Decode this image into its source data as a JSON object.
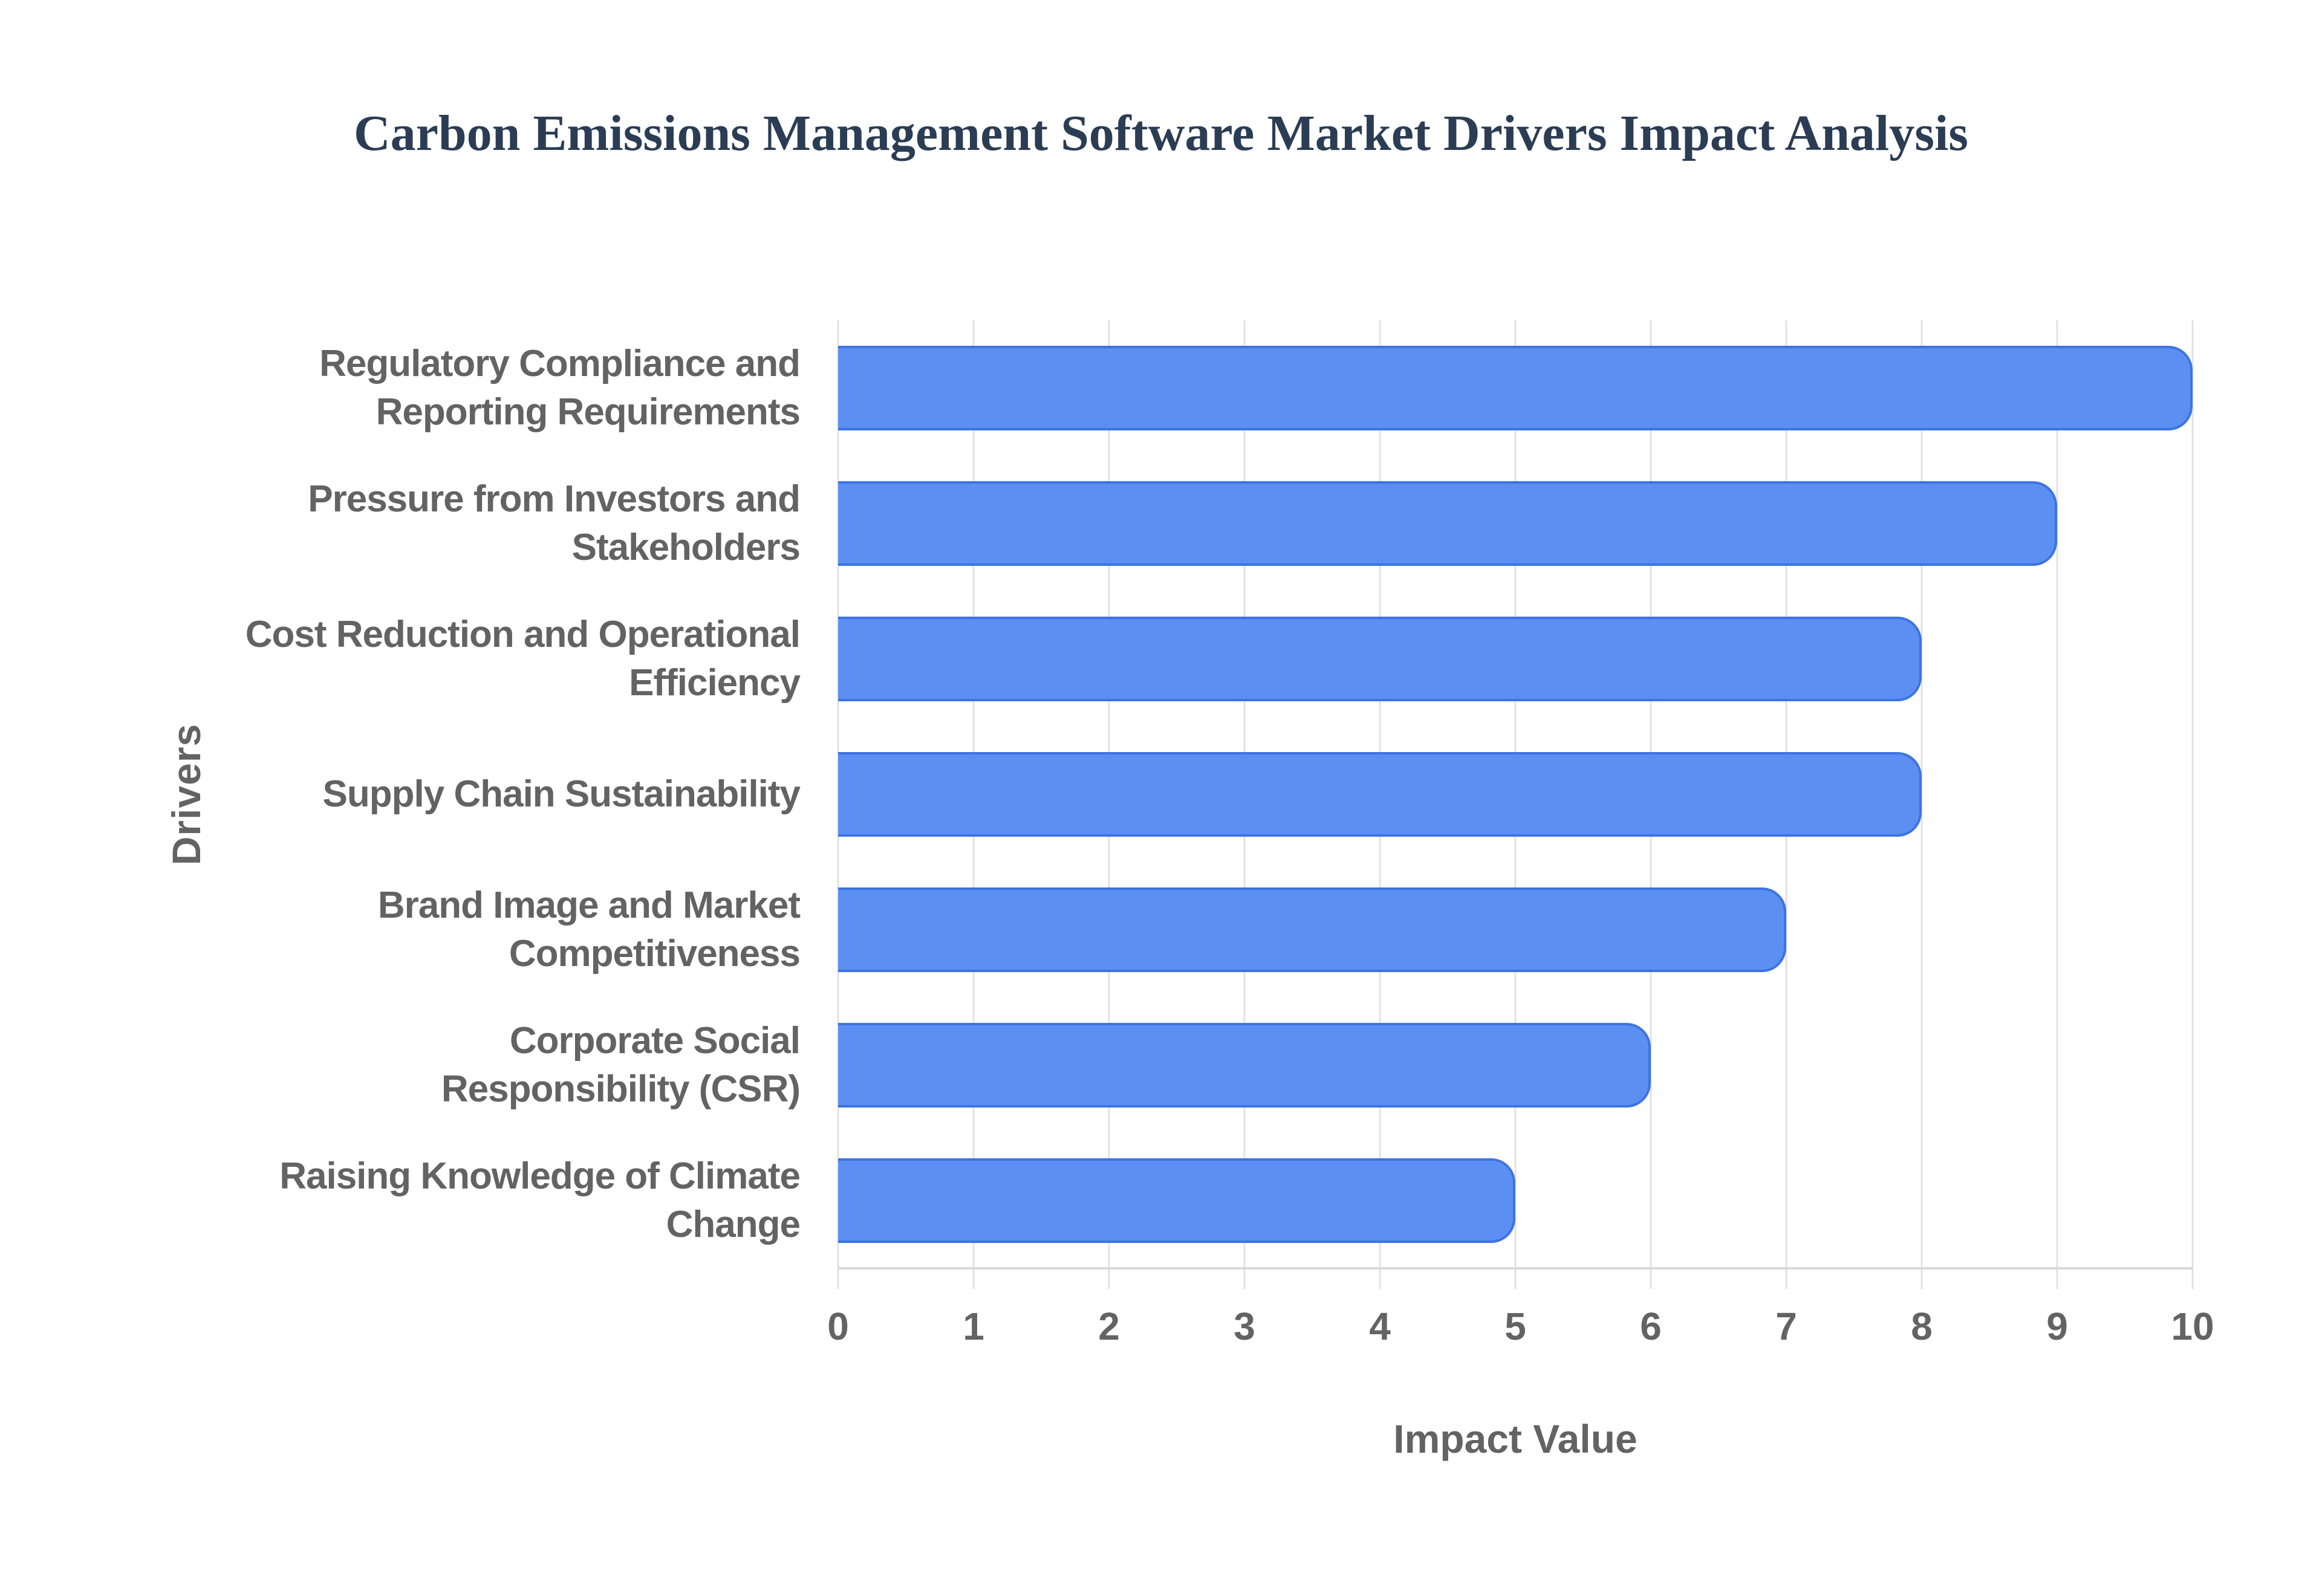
{
  "chart_data": {
    "type": "bar",
    "orientation": "horizontal",
    "title": "Carbon Emissions Management Software Market Drivers Impact Analysis",
    "xlabel": "Impact Value",
    "ylabel": "Drivers",
    "categories": [
      "Regulatory Compliance and Reporting Requirements",
      "Pressure from Investors and Stakeholders",
      "Cost Reduction and Operational Efficiency",
      "Supply Chain Sustainability",
      "Brand Image and Market Competitiveness",
      "Corporate Social Responsibility (CSR)",
      "Raising Knowledge of Climate Change"
    ],
    "category_label_lines": [
      [
        "Regulatory Compliance and",
        "Reporting Requirements"
      ],
      [
        "Pressure from Investors and",
        "Stakeholders"
      ],
      [
        "Cost Reduction and Operational",
        "Efficiency"
      ],
      [
        "Supply Chain Sustainability"
      ],
      [
        "Brand Image and Market",
        "Competitiveness"
      ],
      [
        "Corporate Social",
        "Responsibility (CSR)"
      ],
      [
        "Raising Knowledge of Climate",
        "Change"
      ]
    ],
    "values": [
      10,
      9,
      8,
      8,
      7,
      6,
      5
    ],
    "xlim": [
      0,
      10
    ],
    "xticks": [
      0,
      1,
      2,
      3,
      4,
      5,
      6,
      7,
      8,
      9,
      10
    ],
    "grid": true,
    "legend": null,
    "colors": {
      "background": "#ffffff",
      "title": "#2b3d54",
      "axis_text": "#636363",
      "gridline": "#e2e2e2",
      "baseline": "#d9d9d9",
      "bar_fill": "#5b8ff2",
      "bar_border": "#3d73e3"
    }
  }
}
